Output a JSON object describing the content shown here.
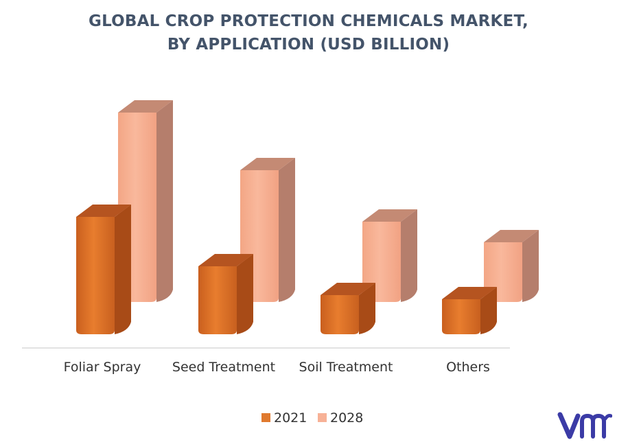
{
  "title_lines": [
    "GLOBAL CROP PROTECTION CHEMICALS MARKET,",
    "BY APPLICATION (USD BILLION)"
  ],
  "colors": {
    "series_2021": "#e07a2f",
    "series_2028": "#f7b196",
    "axis": "#d9d9d9",
    "text": "#333333",
    "logo": "#3b3ba6"
  },
  "logo": {
    "icon": "vmr-logo-icon",
    "text": "vmr"
  },
  "chart_data": {
    "type": "bar",
    "style": "3d-column",
    "title": "GLOBAL CROP PROTECTION CHEMICALS MARKET, BY APPLICATION (USD BILLION)",
    "categories": [
      "Foliar Spray",
      "Seed Treatment",
      "Soil Treatment",
      "Others"
    ],
    "series": [
      {
        "name": "2021",
        "values": [
          28.5,
          16.5,
          9.5,
          8.5
        ]
      },
      {
        "name": "2028",
        "values": [
          46,
          32,
          19.5,
          14.5
        ]
      }
    ],
    "ylim": [
      0,
      50
    ],
    "grid": false,
    "legend": "bottom-center",
    "xlabel": "",
    "ylabel": ""
  }
}
